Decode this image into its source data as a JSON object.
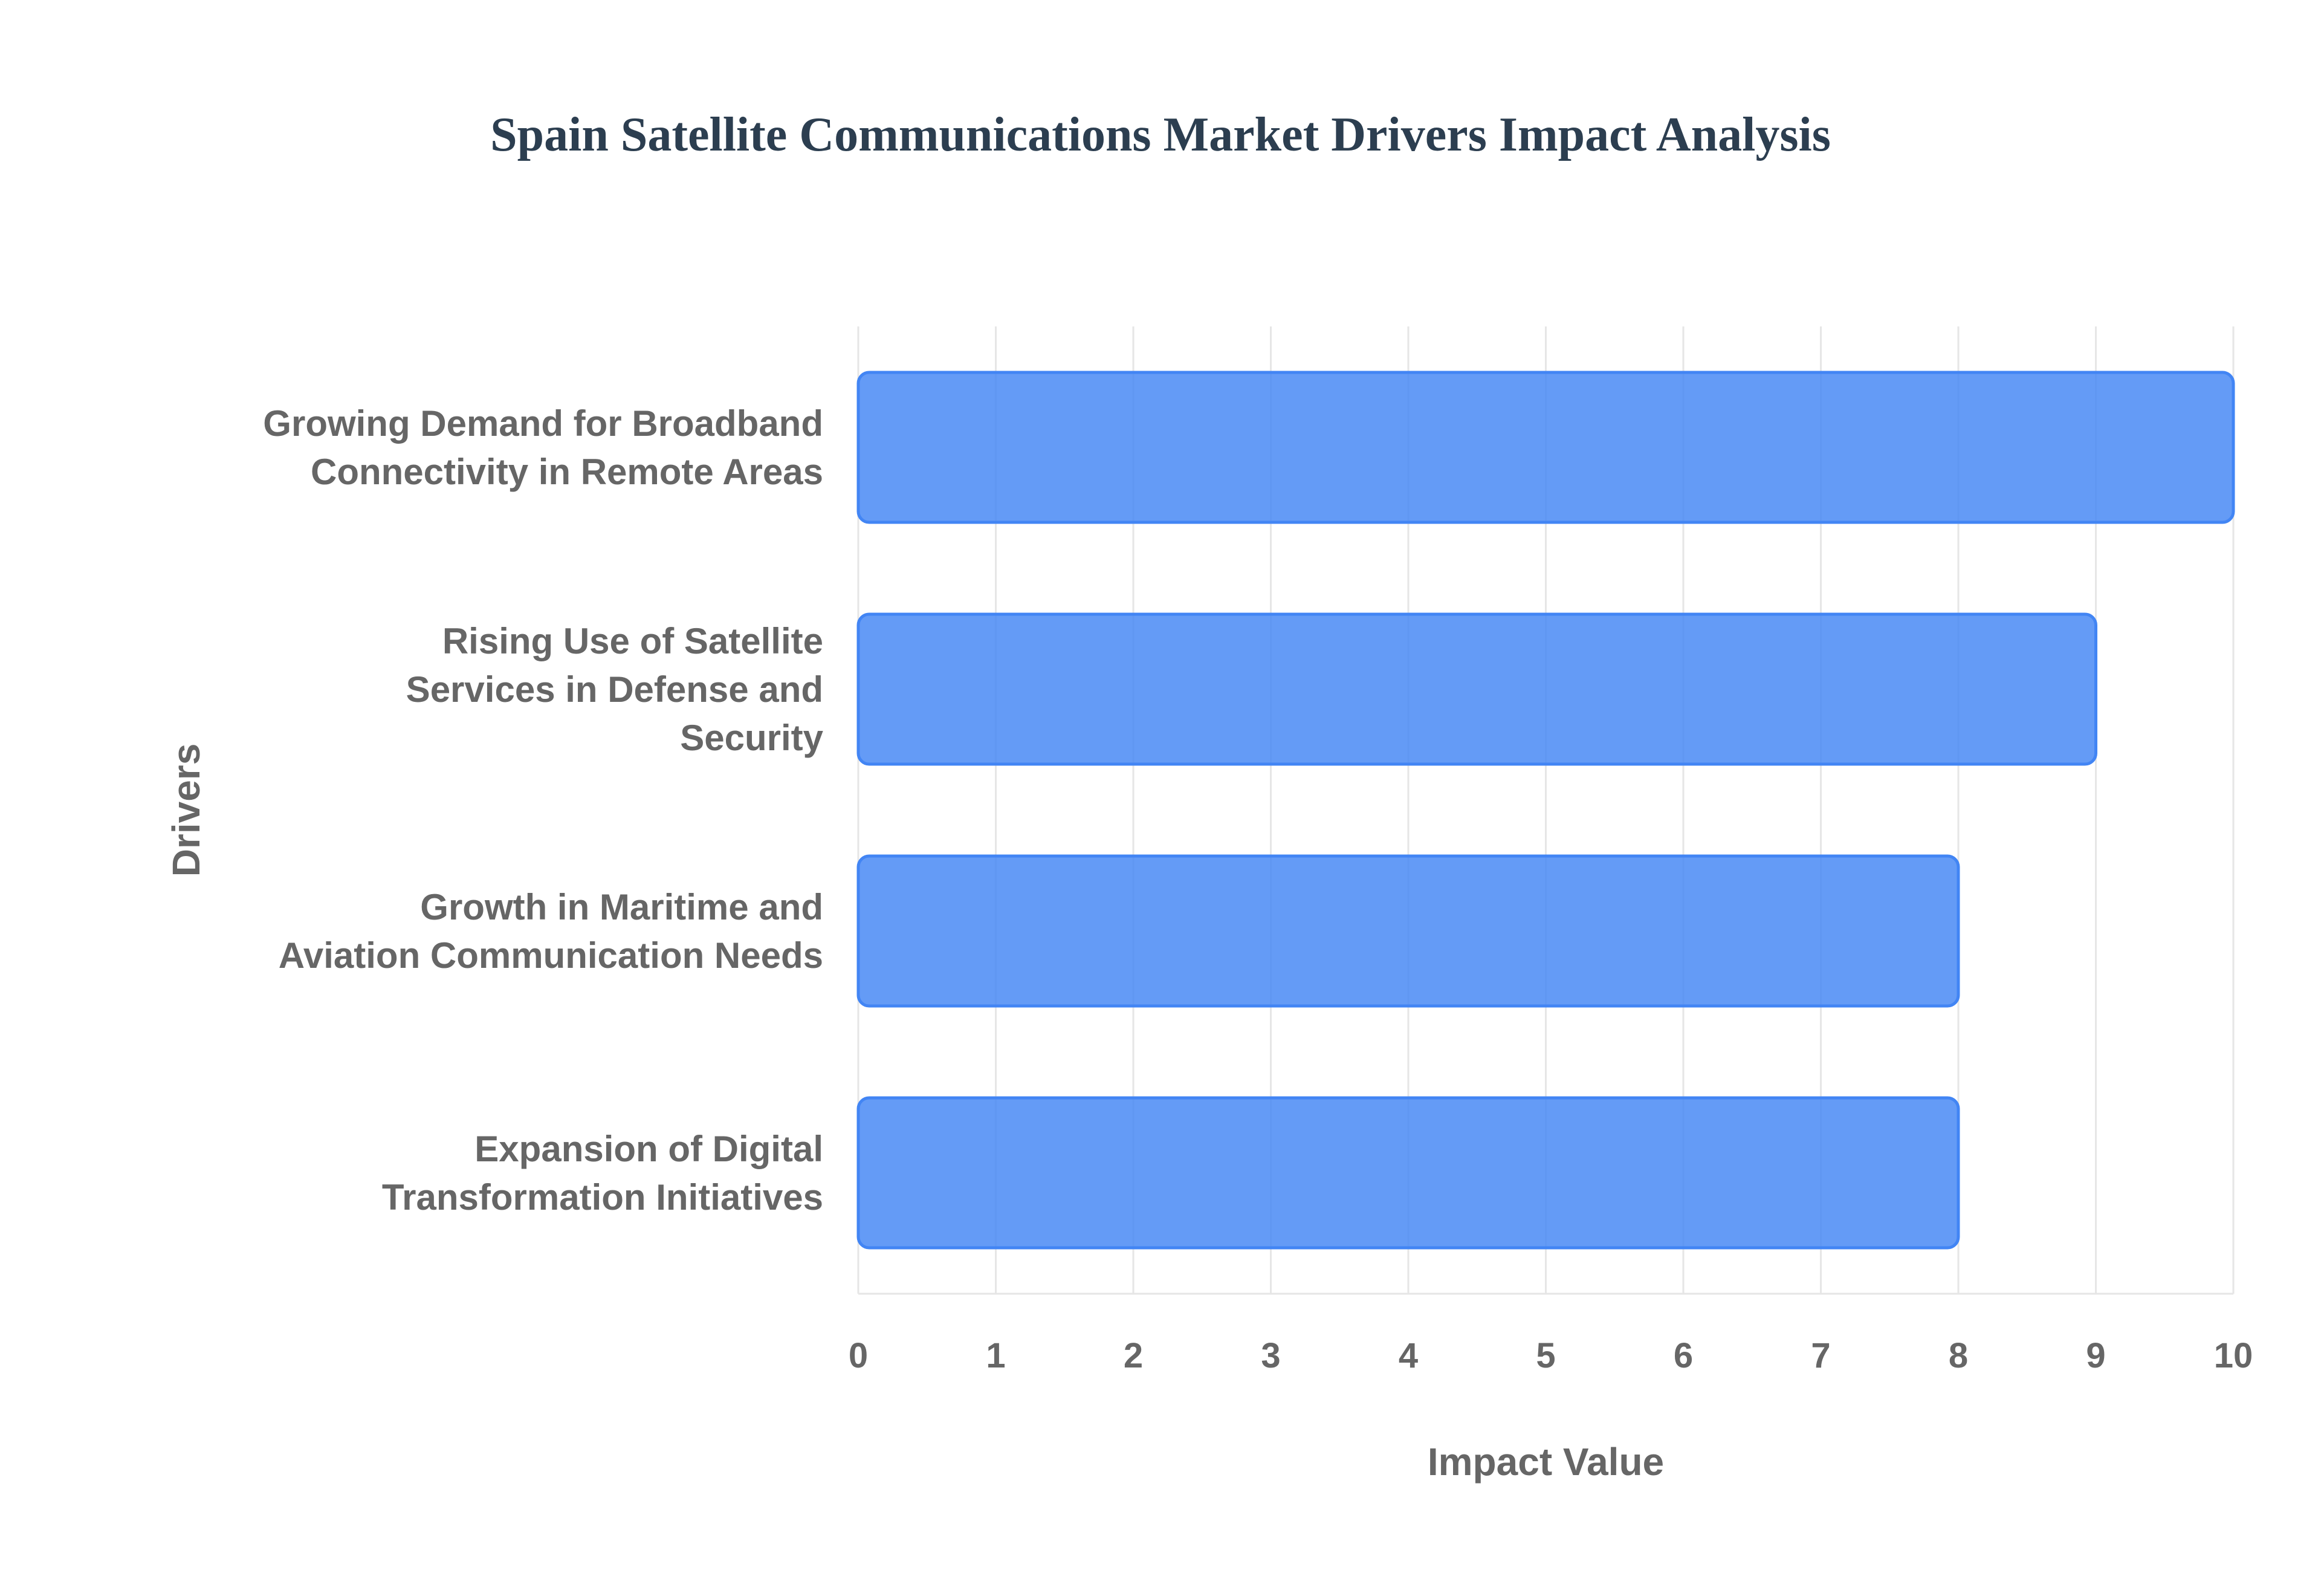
{
  "chart_data": {
    "type": "bar",
    "orientation": "horizontal",
    "title": "Spain Satellite Communications Market Drivers Impact Analysis",
    "xlabel": "Impact Value",
    "ylabel": "Drivers",
    "categories": [
      "Growing Demand for Broadband Connectivity in Remote Areas",
      "Rising Use of Satellite Services in Defense and Security",
      "Growth in Maritime and Aviation Communication Needs",
      "Expansion of Digital Transformation Initiatives"
    ],
    "category_lines": [
      [
        "Growing Demand for Broadband",
        "Connectivity in Remote Areas"
      ],
      [
        "Rising Use of Satellite",
        "Services in Defense and",
        "Security"
      ],
      [
        "Growth in Maritime and",
        "Aviation Communication Needs"
      ],
      [
        "Expansion of Digital",
        "Transformation Initiatives"
      ]
    ],
    "values": [
      10,
      9,
      8,
      8
    ],
    "xlim": [
      0,
      10
    ],
    "xticks": [
      "0",
      "1",
      "2",
      "3",
      "4",
      "5",
      "6",
      "7",
      "8",
      "9",
      "10"
    ],
    "grid": true,
    "legend": false,
    "bar_color": "#4285f4"
  }
}
